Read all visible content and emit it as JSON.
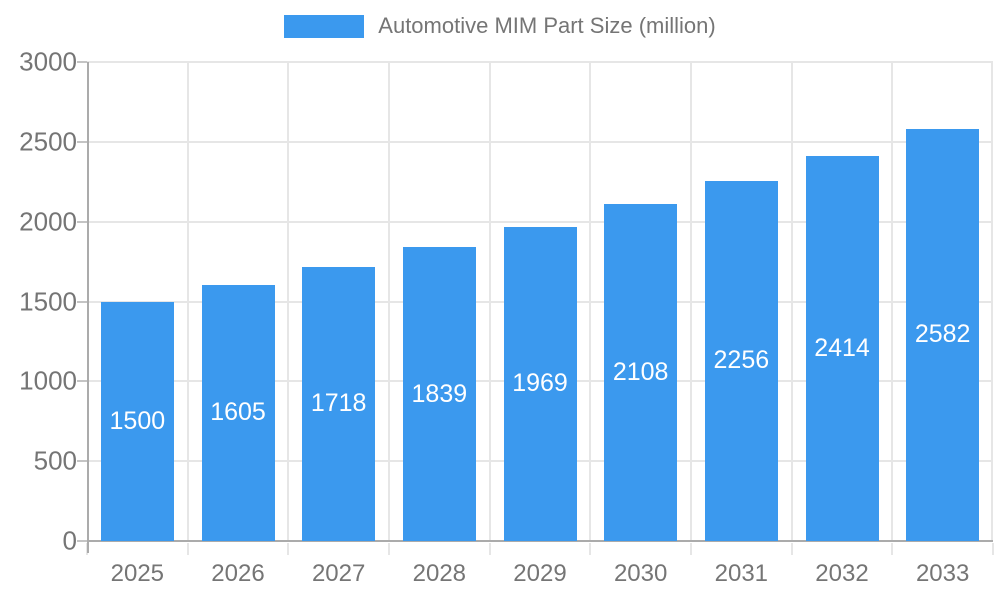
{
  "chart_data": {
    "type": "bar",
    "title": "Automotive MIM Part Size (million)",
    "legend": "Automotive MIM Part Size (million)",
    "legend_position": "top-center",
    "categories": [
      "2025",
      "2026",
      "2027",
      "2028",
      "2029",
      "2030",
      "2031",
      "2032",
      "2033"
    ],
    "values": [
      1500,
      1605,
      1718,
      1839,
      1969,
      2108,
      2256,
      2414,
      2582
    ],
    "xlabel": "",
    "ylabel": "",
    "ylim": [
      0,
      3000
    ],
    "ytick_step": 500,
    "ytick_labels": [
      "0",
      "500",
      "1000",
      "1500",
      "2000",
      "2500",
      "3000"
    ],
    "grid": true,
    "bar_value_labels_visible": true,
    "colors": {
      "bar": "#3B99EE",
      "grid": "#E6E6E6",
      "axis_line": "#ABABAB",
      "tick": "#C4C4C4",
      "axis_text": "#757575",
      "bar_label_text": "#FFFFFF",
      "background": "#FFFFFF"
    }
  }
}
